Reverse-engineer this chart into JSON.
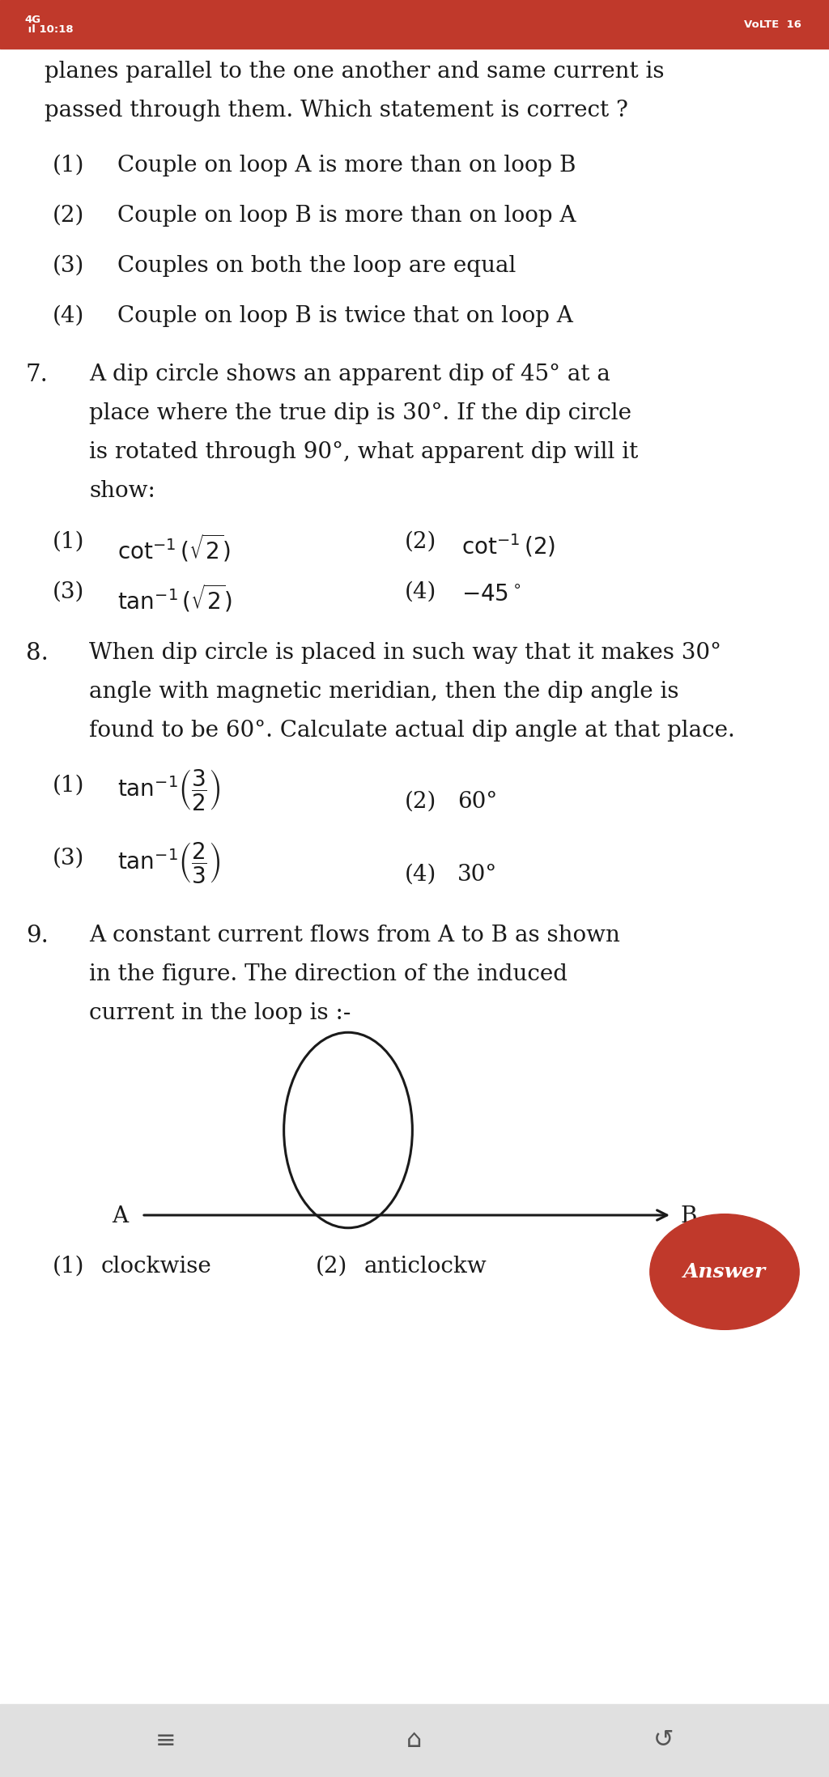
{
  "bg_color": "#ffffff",
  "status_bar_color": "#c0392b",
  "text_color": "#1a1a1a",
  "figsize": [
    10.24,
    21.95
  ],
  "dpi": 100,
  "status_bar_left": "4G\n...| 10:18",
  "status_bar_right": "VoLTE  16",
  "continuation_text_line1": "planes parallel to the one another and same current is",
  "continuation_text_line2": "passed through them. Which statement is correct ?",
  "q6_options": [
    [
      "(1)",
      "Couple on loop A is more than on loop B"
    ],
    [
      "(2)",
      "Couple on loop B is more than on loop A"
    ],
    [
      "(3)",
      "Couples on both the loop are equal"
    ],
    [
      "(4)",
      "Couple on loop B is twice that on loop A"
    ]
  ],
  "q7_num": "7.",
  "q7_lines": [
    "A dip circle shows an apparent dip of 45° at a",
    "place where the true dip is 30°. If the dip circle",
    "is rotated through 90°, what apparent dip will it",
    "show:"
  ],
  "q7_opts_col1": [
    "(1)",
    "(3)"
  ],
  "q7_opts_col2": [
    "(2)",
    "(4)"
  ],
  "q7_math_col1": [
    "\\cot^{-1}(\\sqrt{2})",
    "\\tan^{-1}(\\sqrt{2})"
  ],
  "q7_math_col2": [
    "\\cot^{-1}(2)",
    "-45^\\circ"
  ],
  "q8_num": "8.",
  "q8_lines": [
    "When dip circle is placed in such way that it makes 30°",
    "angle with magnetic meridian, then the dip angle is",
    "found to be 60°. Calculate actual dip angle at that place."
  ],
  "q8_opts_col1": [
    "(1)",
    "(3)"
  ],
  "q8_opts_col2": [
    "(2)",
    "(4)"
  ],
  "q8_math_col1": [
    "\\tan^{-1}\\!\\left(\\dfrac{3}{2}\\right)",
    "\\tan^{-1}\\!\\left(\\dfrac{2}{3}\\right)"
  ],
  "q8_text_col2": [
    "60°",
    "30°"
  ],
  "q9_num": "9.",
  "q9_lines": [
    "A constant current flows from A to B as shown",
    "in the figure. The direction of the induced",
    "current in the loop is :-"
  ],
  "q9_opts": [
    "(1)  clockwise",
    "(2)  anticlockw"
  ],
  "answer_text": "Answer",
  "answer_color": "#c0392b"
}
